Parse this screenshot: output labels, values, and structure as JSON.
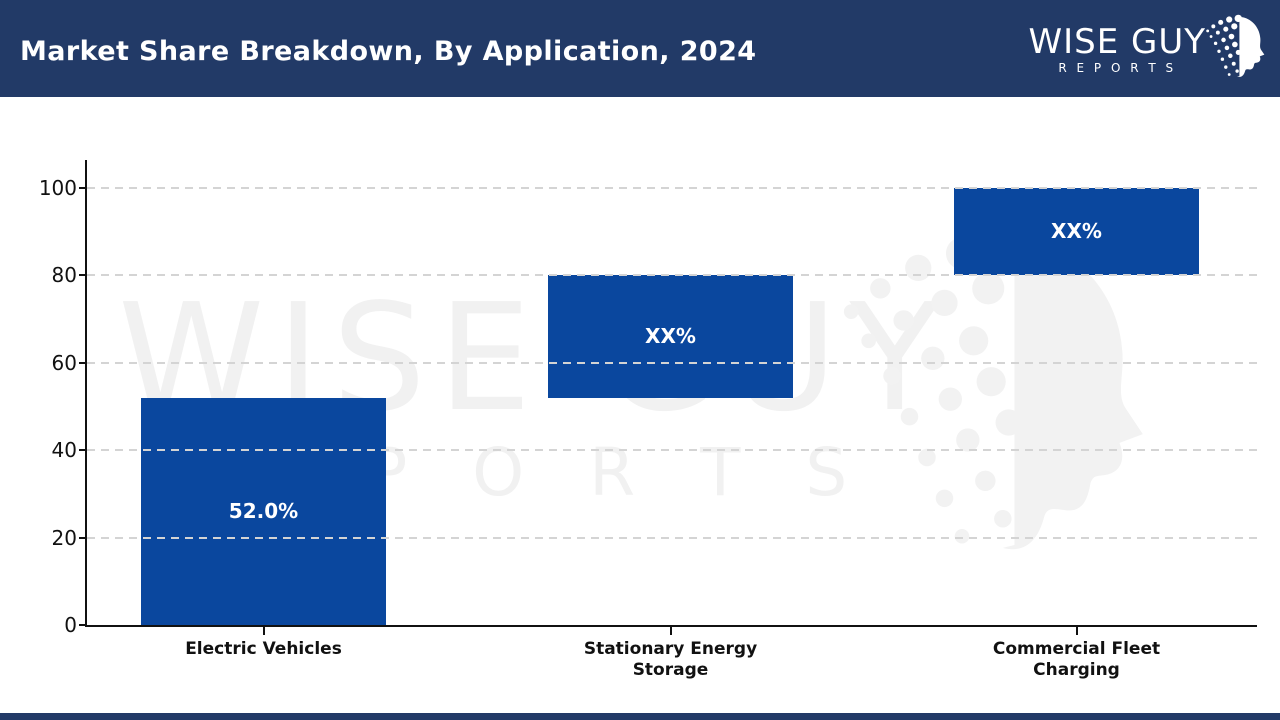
{
  "header": {
    "title": "Market Share Breakdown, By Application, 2024",
    "logo": {
      "line1": "WISE GUY",
      "line2": "R E P O R T S"
    }
  },
  "watermark": {
    "line1": "WISE GUY",
    "line2": "R E P O R T S"
  },
  "chart_data": {
    "type": "bar",
    "variant": "floating-waterfall",
    "title": "Market Share Breakdown, By Application, 2024",
    "categories": [
      "Electric Vehicles",
      "Stationary Energy\nStorage",
      "Commercial Fleet\nCharging"
    ],
    "segments": [
      {
        "category": "Electric Vehicles",
        "start": 0,
        "end": 52,
        "label": "52.0%"
      },
      {
        "category": "Stationary Energy Storage",
        "start": 52,
        "end": 80,
        "label": "XX%"
      },
      {
        "category": "Commercial Fleet Charging",
        "start": 80,
        "end": 100,
        "label": "XX%"
      }
    ],
    "total": 100,
    "ylim": [
      0,
      100
    ],
    "yticks": [
      0,
      20,
      40,
      60,
      80,
      100
    ],
    "grid": {
      "horizontal": true,
      "style": "dashed",
      "on_top": true,
      "color": "#d4d4d4"
    },
    "bar_color": "#0a479e",
    "bar_label_color": "#ffffff",
    "axis_color": "#111111",
    "header_color": "#223a67",
    "legend": "none"
  }
}
